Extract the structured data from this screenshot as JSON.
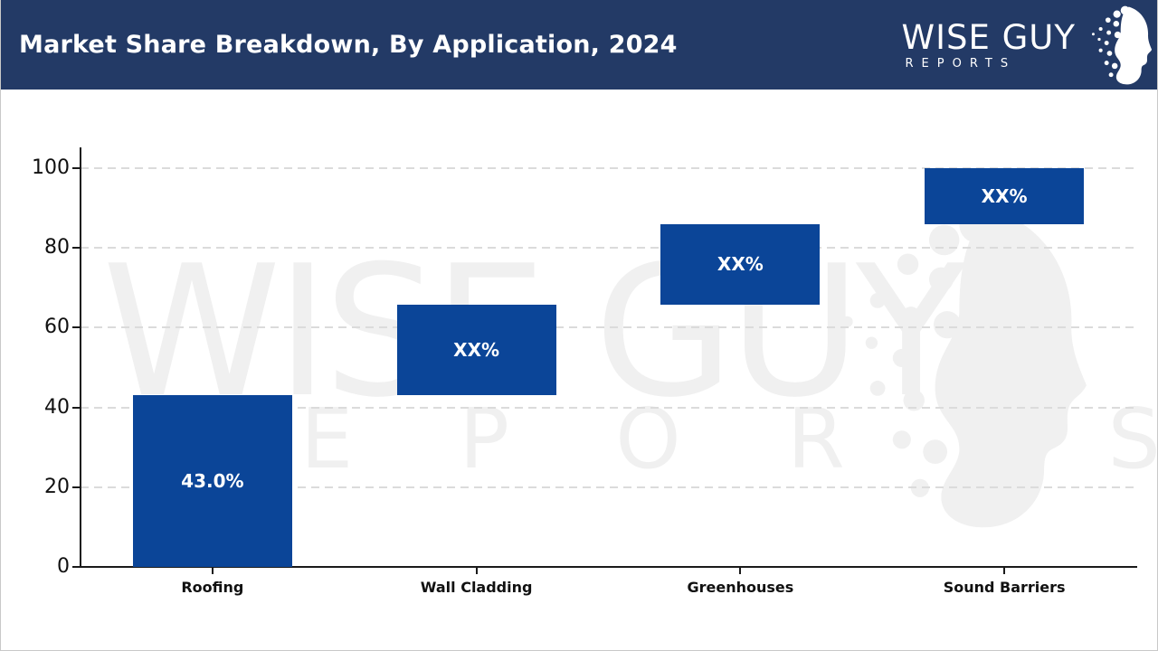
{
  "header": {
    "title": "Market Share Breakdown, By Application, 2024",
    "logo": {
      "line1": "WISE GUY",
      "line2": "REPORTS"
    }
  },
  "watermark": {
    "line1": "WISE GUY",
    "line2": "R E P O R T S"
  },
  "chart_data": {
    "type": "bar",
    "subtype": "waterfall",
    "title": "Market Share Breakdown, By Application, 2024",
    "categories": [
      "Roofing",
      "Wall Cladding",
      "Greenhouses",
      "Sound Barriers"
    ],
    "segments": [
      {
        "category": "Roofing",
        "start": 0,
        "end": 43.0,
        "label": "43.0%"
      },
      {
        "category": "Wall Cladding",
        "start": 43.0,
        "end": 65.8,
        "label": "XX%"
      },
      {
        "category": "Greenhouses",
        "start": 65.8,
        "end": 86.0,
        "label": "XX%"
      },
      {
        "category": "Sound Barriers",
        "start": 86.0,
        "end": 100.0,
        "label": "XX%"
      }
    ],
    "yticks": [
      0,
      20,
      40,
      60,
      80,
      100
    ],
    "ylim": [
      0,
      100
    ],
    "xlabel": "",
    "ylabel": "",
    "grid": "horizontal-dashed",
    "legend": "none",
    "bar_color": "#0b4598",
    "bar_label_color": "#ffffff"
  },
  "colors": {
    "header_bg": "#233a66",
    "bar": "#0b4598",
    "axis": "#1a1a1a",
    "gridline": "#dbdbdb",
    "watermark": "#f0f0f0",
    "frame_border": "#c9c9c9"
  }
}
